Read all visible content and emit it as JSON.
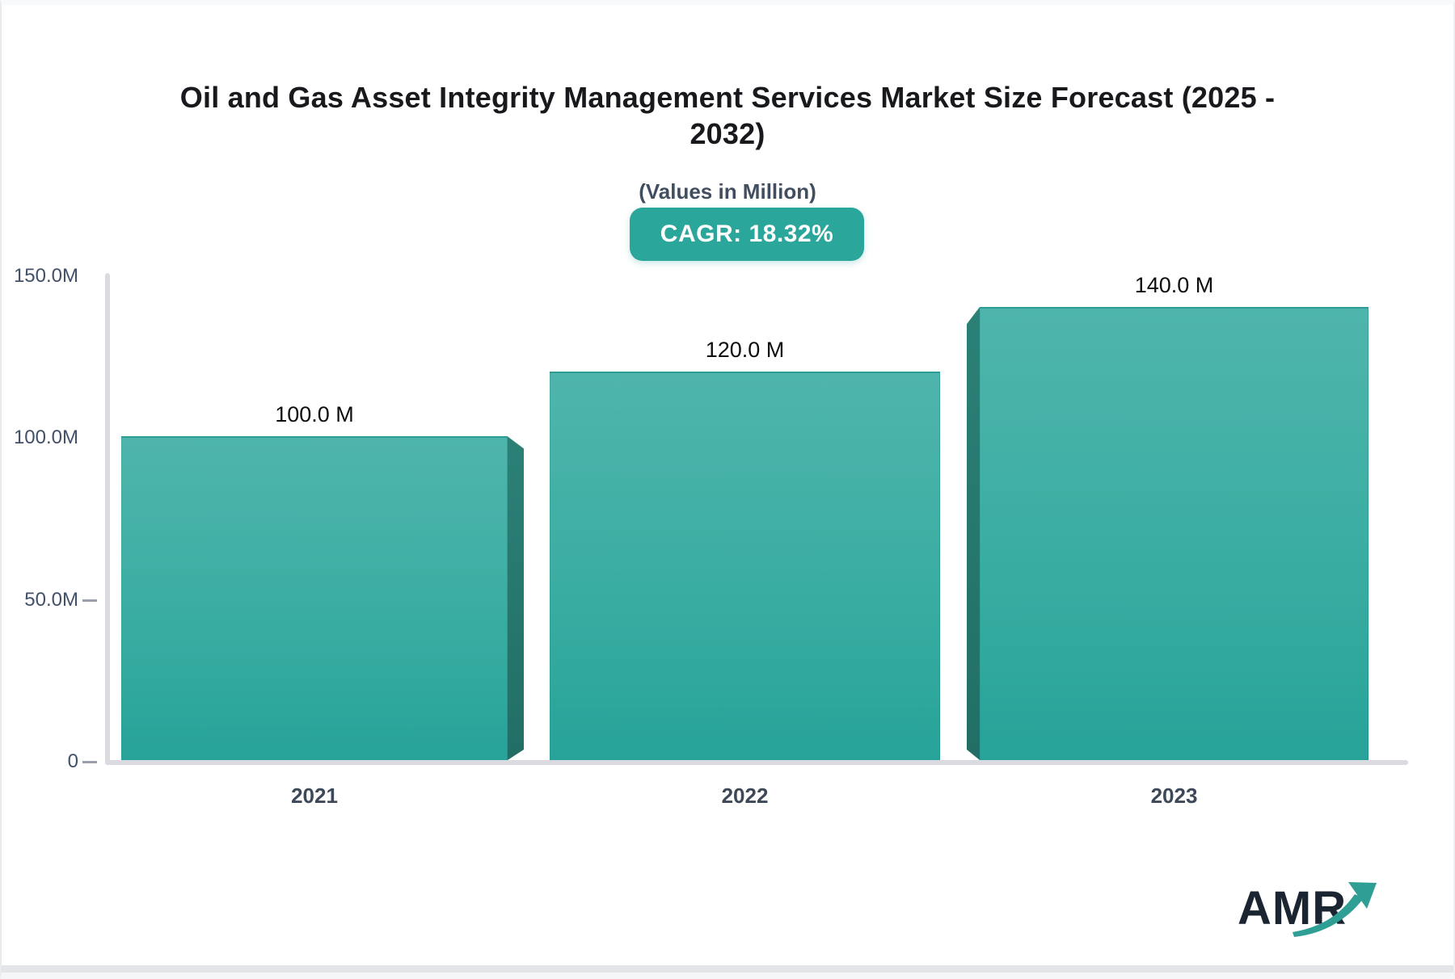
{
  "header": {
    "title_line1": "Oil and Gas Asset Integrity Management Services Market Size Forecast (2025 -",
    "title_line2": "2032)",
    "subtitle": "(Values in Million)",
    "cagr_badge": "CAGR: 18.32%",
    "badge_color": "#2aa69b"
  },
  "chart_data": {
    "type": "bar",
    "title": "Oil and Gas Asset Integrity Management Services Market Size Forecast (2025 - 2032)",
    "subtitle": "(Values in Million)",
    "cagr_percent": 18.32,
    "unit": "Million",
    "categories": [
      "2021",
      "2022",
      "2023"
    ],
    "values": [
      100.0,
      120.0,
      140.0
    ],
    "value_labels": [
      "100.0 M",
      "120.0 M",
      "140.0 M"
    ],
    "ylabel": "",
    "xlabel": "",
    "ylim": [
      0,
      150
    ],
    "yticks": [
      {
        "label": "0",
        "value": 0,
        "dash": true
      },
      {
        "label": "50.0M",
        "value": 50,
        "dash": true
      },
      {
        "label": "100.0M",
        "value": 100,
        "dash": false
      },
      {
        "label": "150.0M",
        "value": 150,
        "dash": false
      }
    ],
    "grid": false,
    "legend": false,
    "bar_color_top": "#4fb5ac",
    "bar_color_bottom": "#27a399",
    "bar_side_color": "#27786f",
    "bar_3d_sides": [
      "right",
      "none",
      "left"
    ]
  },
  "logo": {
    "text": "AMR",
    "text_color": "#1b2531",
    "arrow_color": "#2f9e95"
  }
}
